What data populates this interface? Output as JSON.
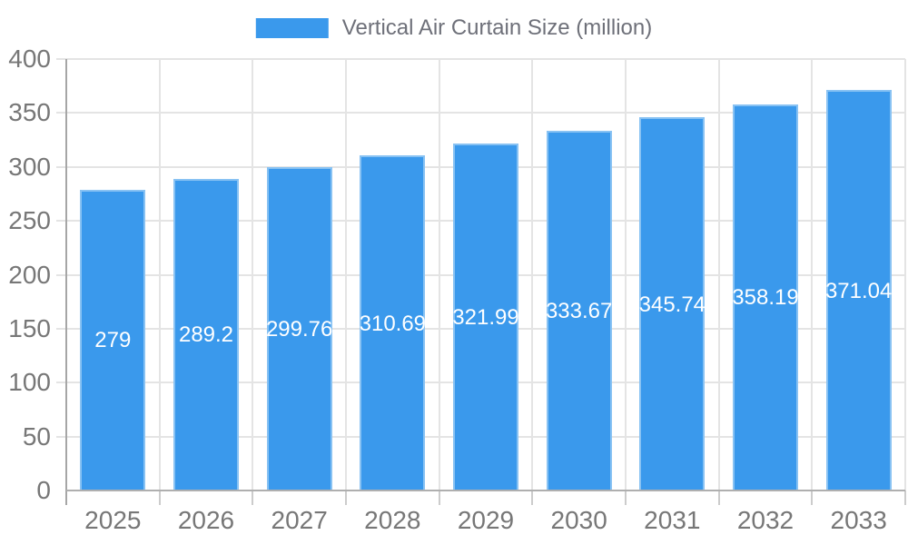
{
  "legend": {
    "label": "Vertical Air Curtain Size (million)"
  },
  "colors": {
    "bar": "#3A99EC",
    "bar_value_label": "#FFFFFF",
    "legend_text": "#6E7079",
    "axis_text": "#777777",
    "gridline": "#E4E4E4",
    "axis_line_y": "#A6A6A6",
    "axis_line_x": "#AFAFAF",
    "tick": "#CCCCCC"
  },
  "chart_data": {
    "type": "bar",
    "title": "Vertical Air Curtain Size (million)",
    "series_name": "Vertical Air Curtain Size (million)",
    "categories": [
      "2025",
      "2026",
      "2027",
      "2028",
      "2029",
      "2030",
      "2031",
      "2032",
      "2033"
    ],
    "values": [
      279,
      289.2,
      299.76,
      310.69,
      321.99,
      333.67,
      345.74,
      358.19,
      371.04
    ],
    "value_labels": [
      "279",
      "289.2",
      "299.76",
      "310.69",
      "321.99",
      "333.67",
      "345.74",
      "358.19",
      "371.04"
    ],
    "xlabel": "",
    "ylabel": "",
    "ylim": [
      0,
      400
    ],
    "y_ticks": [
      0,
      50,
      100,
      150,
      200,
      250,
      300,
      350,
      400
    ],
    "grid": true,
    "legend_position": "top",
    "value_label_position": "inside-center"
  }
}
